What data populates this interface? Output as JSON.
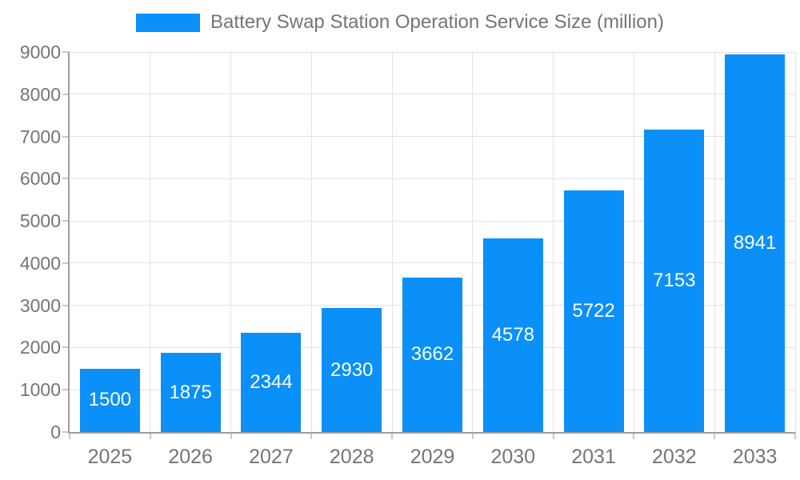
{
  "legend": {
    "label": "Battery Swap Station Operation Service Size (million)"
  },
  "chart_data": {
    "type": "bar",
    "title": "Battery Swap Station Operation Service Size (million)",
    "categories": [
      "2025",
      "2026",
      "2027",
      "2028",
      "2029",
      "2030",
      "2031",
      "2032",
      "2033"
    ],
    "values": [
      1500,
      1875,
      2344,
      2930,
      3662,
      4578,
      5722,
      7153,
      8941
    ],
    "series": [
      {
        "name": "Battery Swap Station Operation Service Size (million)",
        "values": [
          1500,
          1875,
          2344,
          2930,
          3662,
          4578,
          5722,
          7153,
          8941
        ]
      }
    ],
    "xlabel": "",
    "ylabel": "",
    "ylim": [
      0,
      9000
    ],
    "yticks": [
      0,
      1000,
      2000,
      3000,
      4000,
      5000,
      6000,
      7000,
      8000,
      9000
    ],
    "grid": true,
    "legend_position": "top",
    "bar_labels_visible": true
  },
  "colors": {
    "bar": "#0a90f8",
    "bar_label": "#ffffff",
    "grid": "#e2e2e2",
    "axis": "#9e9e9e",
    "tick": "#c9c9c9",
    "text": "#757575",
    "background": "#ffffff"
  }
}
